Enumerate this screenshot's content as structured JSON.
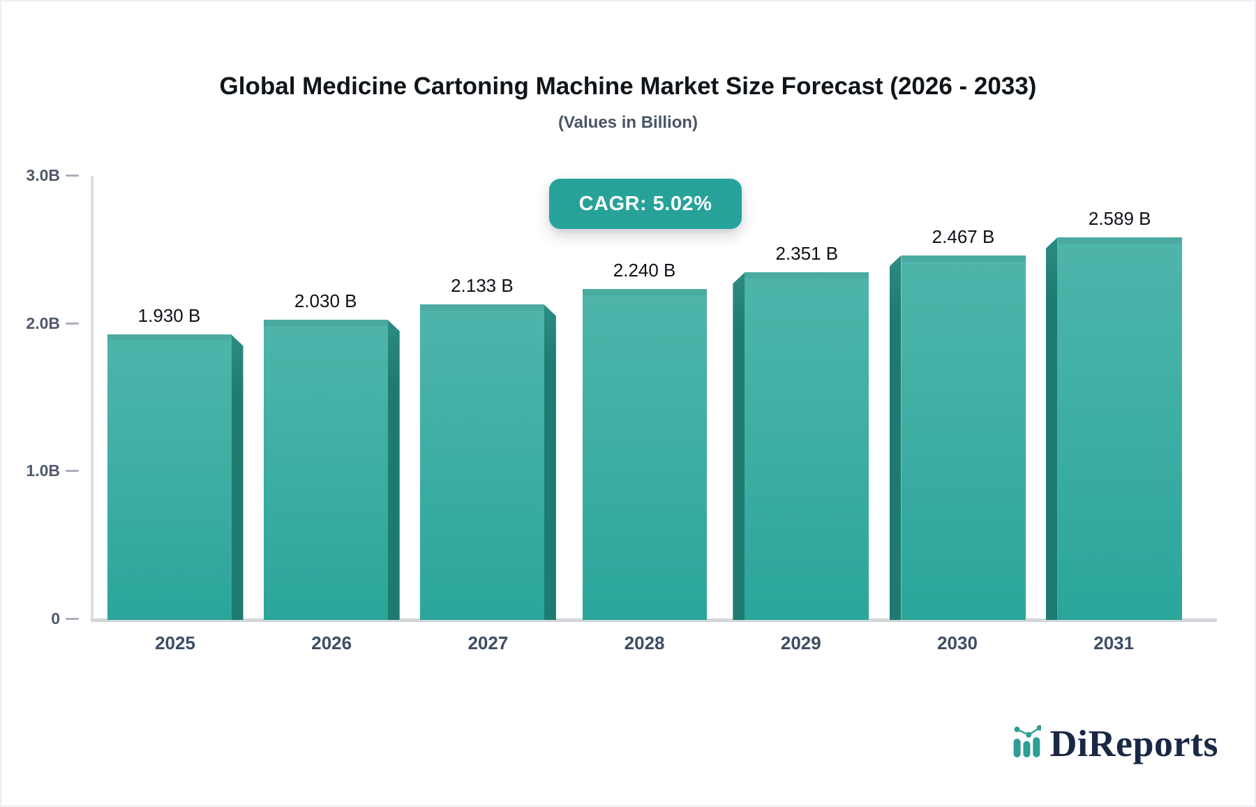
{
  "chart_data": {
    "type": "bar",
    "title": "Global Medicine Cartoning Machine Market Size Forecast (2026 - 2033)",
    "subtitle": "(Values in Billion)",
    "cagr_label": "CAGR: 5.02%",
    "categories": [
      "2025",
      "2026",
      "2027",
      "2028",
      "2029",
      "2030",
      "2031"
    ],
    "values": [
      1.93,
      2.03,
      2.133,
      2.24,
      2.351,
      2.467,
      2.589
    ],
    "value_labels": [
      "1.930 B",
      "2.030 B",
      "2.133 B",
      "2.240 B",
      "2.351 B",
      "2.467 B",
      "2.589 B"
    ],
    "unit": "Billion",
    "ylim": [
      0,
      3.0
    ],
    "yticks": {
      "labels": [
        "3.0B",
        "2.0B",
        "1.0B",
        "0"
      ],
      "values": [
        3.0,
        2.0,
        1.0,
        0
      ]
    },
    "grid": false,
    "legend": "none",
    "bar_3d_side": [
      "right",
      "right",
      "right",
      "none",
      "left",
      "left",
      "left"
    ]
  },
  "footer": {
    "brand": "DiReports"
  },
  "colors": {
    "accent": "#26a299",
    "bar_face_top": "#4fb5ab",
    "bar_face_bottom": "#2ba69a",
    "bar_side": "#1e7b72",
    "axis_gray": "#d2d6da",
    "logo_teal": "#2e9d93",
    "logo_navy": "#1a2745",
    "value_label": "#0d1117",
    "x_label": "#3d4d63",
    "y_label": "#4f5b6b"
  }
}
